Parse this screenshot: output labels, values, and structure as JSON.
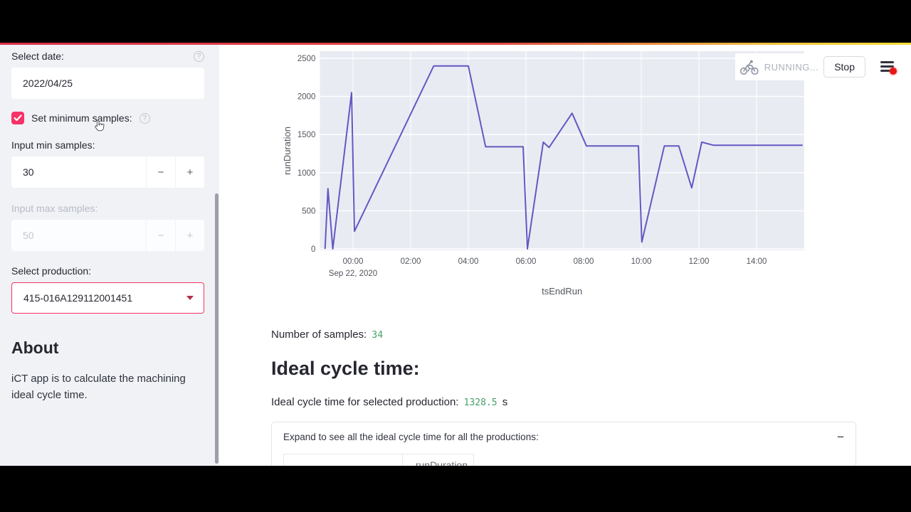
{
  "colors": {
    "primary_red": "#f63366",
    "code_green": "#47a06c",
    "chart_line": "#6159c2",
    "chart_plot_bg": "#e9ebf3",
    "sidebar_bg": "#f0f2f6",
    "notification_dot": "#e81717"
  },
  "icons": {
    "help": "?",
    "collapse": "−",
    "stepper_minus": "−",
    "stepper_plus": "+",
    "runner": "cyclist-running-status",
    "menu": "hamburger-menu"
  },
  "sidebar": {
    "date_label": "Select date:",
    "date_value": "2022/04/25",
    "min_checkbox_label": "Set minimum samples:",
    "min_input_label": "Input min samples:",
    "min_value": "30",
    "max_input_label": "Input max samples:",
    "max_value": "50",
    "production_label": "Select production:",
    "production_value": "415-016A129112001451",
    "about_title": "About",
    "about_text": "iCT app is to calculate the machining ideal cycle time."
  },
  "header": {
    "status_label": "RUNNING...",
    "stop_button": "Stop"
  },
  "main": {
    "samples_label": "Number of samples:",
    "samples_value": "34",
    "section_title": "Ideal cycle time:",
    "ict_label": "Ideal cycle time for selected production:",
    "ict_value": "1328.5",
    "ict_unit": "s",
    "expander_label": "Expand to see all the ideal cycle time for all the productions:",
    "table": {
      "columns": [
        "",
        "runDuration"
      ]
    }
  },
  "chart_data": {
    "type": "line",
    "title": "",
    "xlabel": "tsEndRun",
    "ylabel": "runDuration",
    "x_date_label": "Sep 22, 2020",
    "x_ticks": [
      "00:00",
      "02:00",
      "04:00",
      "06:00",
      "08:00",
      "10:00",
      "12:00",
      "14:00"
    ],
    "x_tick_hours": [
      0,
      2,
      4,
      6,
      8,
      10,
      12,
      14
    ],
    "y_ticks": [
      0,
      500,
      1000,
      1500,
      2000,
      2500
    ],
    "ylim": [
      0,
      2500
    ],
    "xlim_hours": [
      -1.15,
      15.65
    ],
    "grid": true,
    "legend": false,
    "points": [
      {
        "time": "23:02",
        "t_hours": -0.97,
        "value": 0
      },
      {
        "time": "23:08",
        "t_hours": -0.87,
        "value": 790
      },
      {
        "time": "23:18",
        "t_hours": -0.7,
        "value": 0
      },
      {
        "time": "23:57",
        "t_hours": -0.05,
        "value": 2050
      },
      {
        "time": "00:03",
        "t_hours": 0.05,
        "value": 230
      },
      {
        "time": "02:48",
        "t_hours": 2.8,
        "value": 2400
      },
      {
        "time": "04:00",
        "t_hours": 4.0,
        "value": 2400
      },
      {
        "time": "04:36",
        "t_hours": 4.6,
        "value": 1340
      },
      {
        "time": "05:54",
        "t_hours": 5.9,
        "value": 1340
      },
      {
        "time": "06:03",
        "t_hours": 6.05,
        "value": 0
      },
      {
        "time": "06:36",
        "t_hours": 6.6,
        "value": 1400
      },
      {
        "time": "06:48",
        "t_hours": 6.8,
        "value": 1330
      },
      {
        "time": "07:36",
        "t_hours": 7.6,
        "value": 1780
      },
      {
        "time": "08:06",
        "t_hours": 8.1,
        "value": 1350
      },
      {
        "time": "09:54",
        "t_hours": 9.9,
        "value": 1350
      },
      {
        "time": "10:01",
        "t_hours": 10.02,
        "value": 90
      },
      {
        "time": "10:48",
        "t_hours": 10.8,
        "value": 1350
      },
      {
        "time": "11:18",
        "t_hours": 11.3,
        "value": 1350
      },
      {
        "time": "11:45",
        "t_hours": 11.75,
        "value": 800
      },
      {
        "time": "12:06",
        "t_hours": 12.1,
        "value": 1400
      },
      {
        "time": "12:30",
        "t_hours": 12.5,
        "value": 1360
      },
      {
        "time": "15:36",
        "t_hours": 15.6,
        "value": 1360
      }
    ]
  }
}
